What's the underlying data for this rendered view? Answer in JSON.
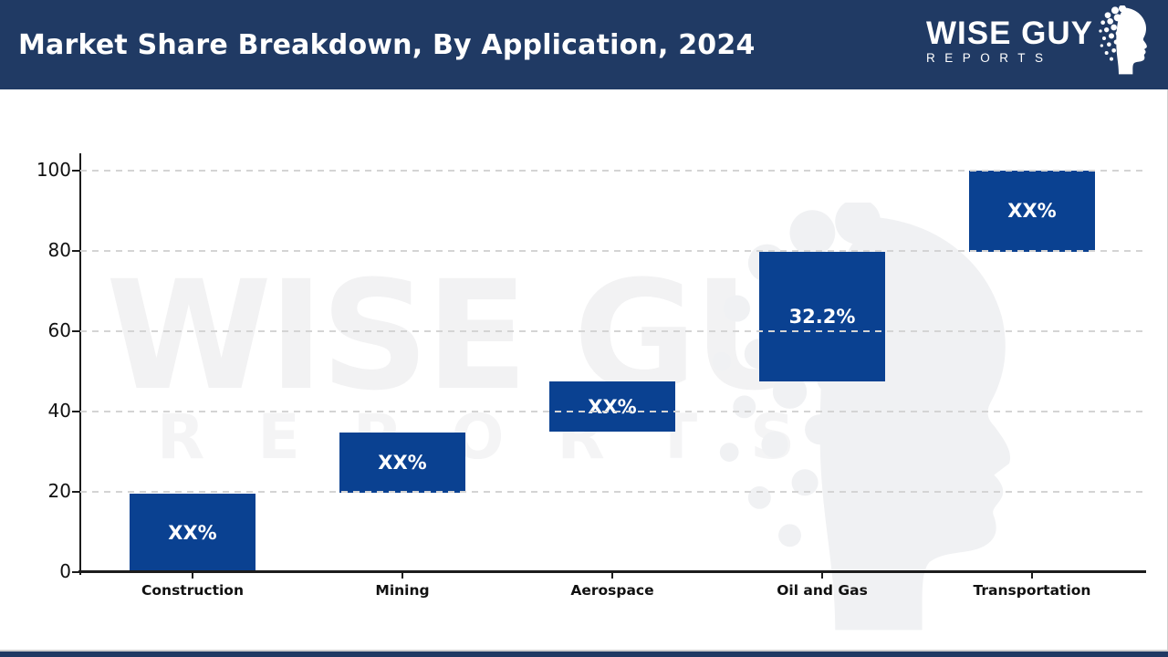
{
  "header": {
    "title": "Market Share Breakdown, By Application, 2024",
    "logo_line1": "WISE GUY",
    "logo_line2": "REPORTS",
    "logo_head_icon": "dotted-face-profile-icon"
  },
  "watermark": {
    "line1": "WISE GUY",
    "line2": "REPORTS",
    "head_icon": "dotted-face-profile-watermark"
  },
  "footer": {
    "bar_color": "#203a64"
  },
  "colors": {
    "header_bg": "#203a64",
    "bar_blue": "#0a4191",
    "axis": "#1c1c1c",
    "gridline": "#d4d4d4",
    "watermark_grey": "#f2f2f3",
    "label_text": "#111111",
    "bar_label_text": "#ffffff"
  },
  "chart_data": {
    "type": "bar",
    "subtype": "floating-waterfall",
    "title": "Market Share Breakdown, By Application, 2024",
    "categories": [
      "Construction",
      "Mining",
      "Aerospace",
      "Oil and Gas",
      "Transportation"
    ],
    "segments": [
      {
        "category": "Construction",
        "start": 0,
        "end": 19.5,
        "label": "XX%"
      },
      {
        "category": "Mining",
        "start": 19.8,
        "end": 34.8,
        "label": "XX%"
      },
      {
        "category": "Aerospace",
        "start": 35.0,
        "end": 47.5,
        "label": "XX%"
      },
      {
        "category": "Oil and Gas",
        "start": 47.6,
        "end": 79.8,
        "label": "32.2%"
      },
      {
        "category": "Transportation",
        "start": 79.8,
        "end": 100.0,
        "label": "XX%"
      }
    ],
    "xlabel": "",
    "ylabel": "",
    "yticks": [
      0,
      20,
      40,
      60,
      80,
      100
    ],
    "ylim": [
      0,
      105
    ],
    "grid": "horizontal-dashed",
    "legend": "none",
    "bar_value_labels_inside": true
  }
}
